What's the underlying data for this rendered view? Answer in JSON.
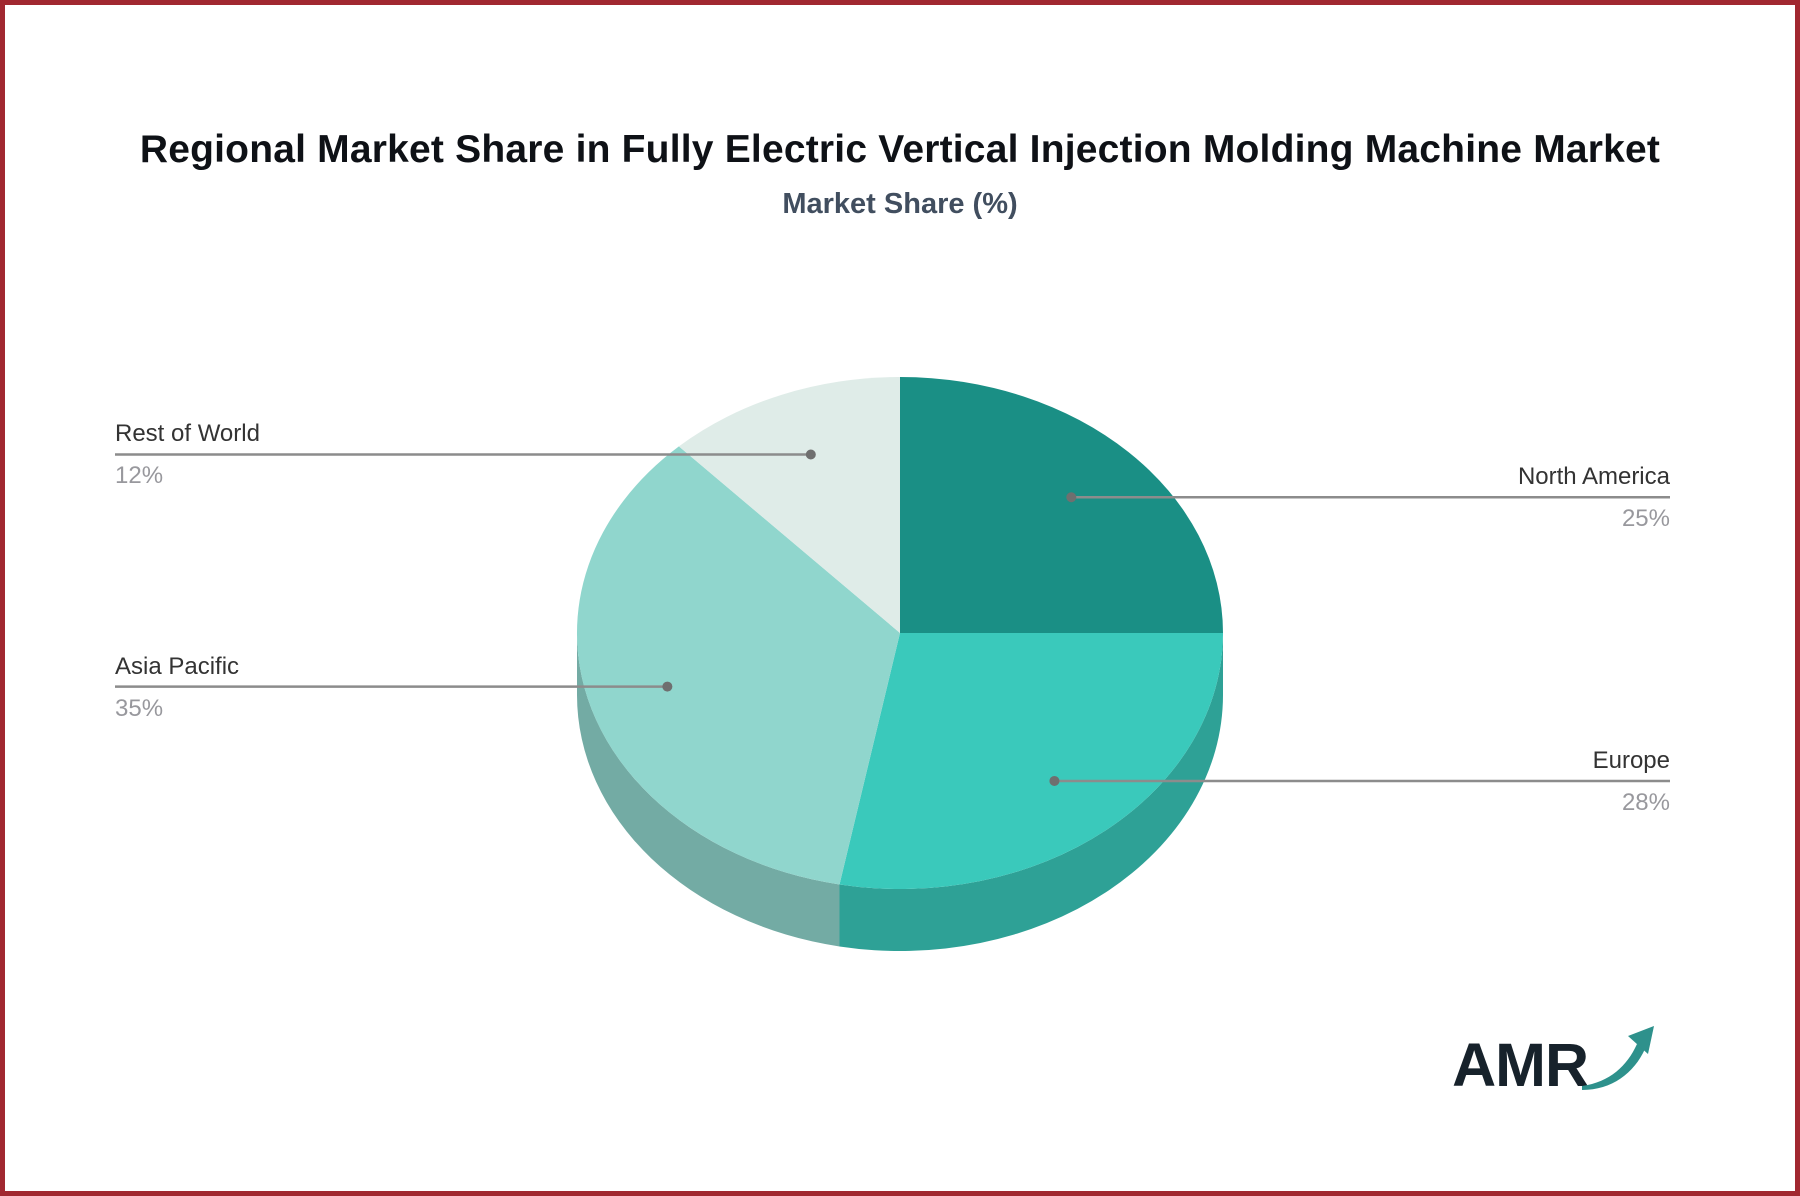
{
  "chart_data": {
    "type": "pie",
    "effect": "3d",
    "title": "Regional Market Share in Fully Electric Vertical Injection Molding Machine Market",
    "subtitle": "Market Share (%)",
    "unit": "%",
    "start_angle": "12-oclock-clockwise",
    "legend": "none",
    "label_style": "callout-leader-lines",
    "slices": [
      {
        "label": "North America",
        "value": 25,
        "display": "25%",
        "color": "#1a8f85",
        "callout_side": "right"
      },
      {
        "label": "Europe",
        "value": 28,
        "display": "28%",
        "color": "#3ac9bb",
        "callout_side": "right"
      },
      {
        "label": "Asia Pacific",
        "value": 35,
        "display": "35%",
        "color": "#90d6cd",
        "callout_side": "left"
      },
      {
        "label": "Rest of World",
        "value": 12,
        "display": "12%",
        "color": "#dfece8",
        "callout_side": "left"
      }
    ]
  },
  "logo": {
    "text": "AMR",
    "arrow_icon": "growth-arrow-icon",
    "text_color": "#17222b",
    "arrow_color": "#2e918c"
  }
}
